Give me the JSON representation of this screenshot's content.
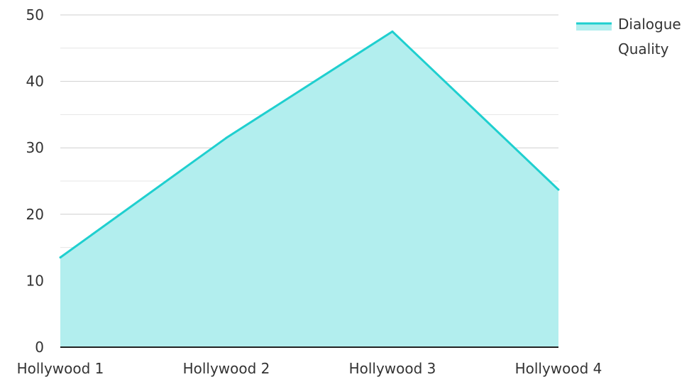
{
  "chart_data": {
    "type": "area",
    "categories": [
      "Hollywood 1",
      "Hollywood 2",
      "Hollywood 3",
      "Hollywood 4"
    ],
    "series": [
      {
        "name": "Dialogue Quality",
        "name_lines": [
          "Dialogue",
          "Quality"
        ],
        "values": [
          13.5,
          31.5,
          47.5,
          23.7
        ],
        "line_color": "#1fcfcf",
        "fill_color": "#b2eeee"
      }
    ],
    "ylim": [
      0,
      50
    ],
    "y_ticks": [
      "0",
      "10",
      "20",
      "30",
      "40",
      "50"
    ],
    "grid": true,
    "legend_position": "top-right",
    "xlabel": "",
    "ylabel": "",
    "title": ""
  }
}
